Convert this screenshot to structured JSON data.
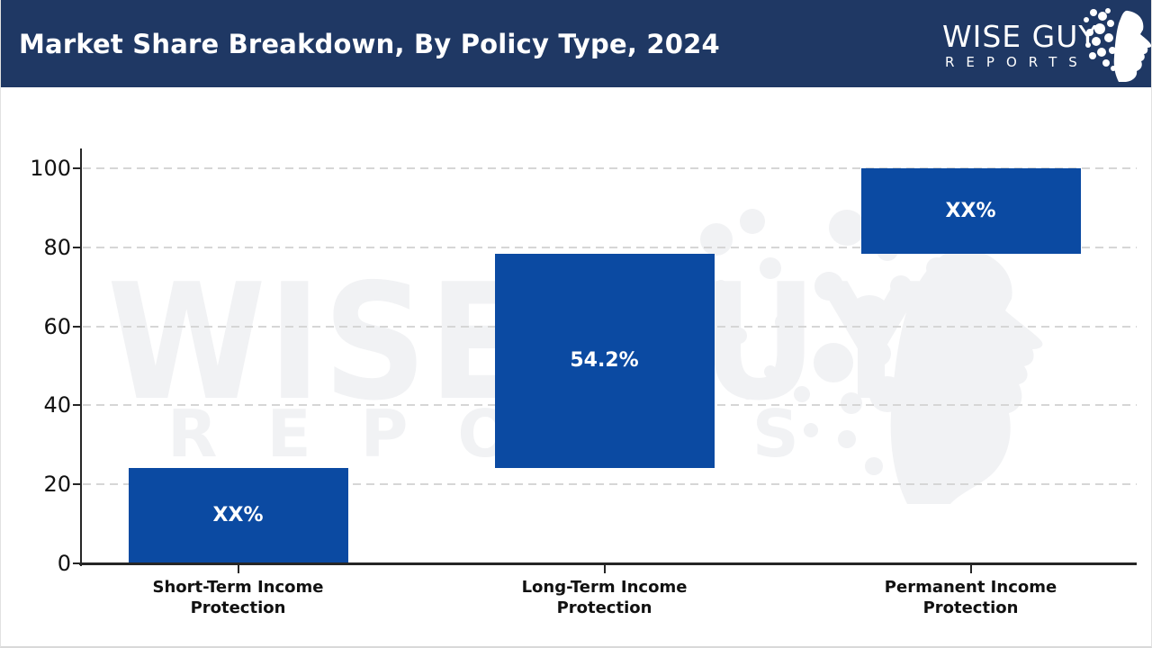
{
  "header": {
    "title": "Market Share Breakdown, By Policy Type, 2024",
    "logo": {
      "line1": "WISE GUY",
      "line2": "REPORTS"
    }
  },
  "watermark": {
    "line1": "WISE GUY",
    "line2": "REPORTS"
  },
  "chart_data": {
    "type": "bar",
    "subtype": "floating-stacked-breakdown",
    "title": "Market Share Breakdown, By Policy Type, 2024",
    "xlabel": "",
    "ylabel": "",
    "categories": [
      "Short-Term Income\nProtection",
      "Long-Term Income\nProtection",
      "Permanent Income\nProtection"
    ],
    "bars": [
      {
        "category": "Short-Term Income Protection",
        "start": 0,
        "end": 24.2,
        "value_label": "XX%"
      },
      {
        "category": "Long-Term Income Protection",
        "start": 24.2,
        "end": 78.4,
        "value_label": "54.2%"
      },
      {
        "category": "Permanent Income Protection",
        "start": 78.4,
        "end": 100,
        "value_label": "XX%"
      }
    ],
    "yticks": [
      0,
      20,
      40,
      60,
      80,
      100
    ],
    "ylim": [
      0,
      105
    ],
    "grid": {
      "axis": "y",
      "style": "dashed"
    },
    "legend": null,
    "colors": {
      "bar": "#0b4aa2",
      "grid": "#d6d6d6",
      "axis": "#262626",
      "tick_label": "#111111",
      "bar_label": "#ffffff",
      "header_bg": "#1f3864",
      "watermark": "#f1f2f4"
    }
  }
}
